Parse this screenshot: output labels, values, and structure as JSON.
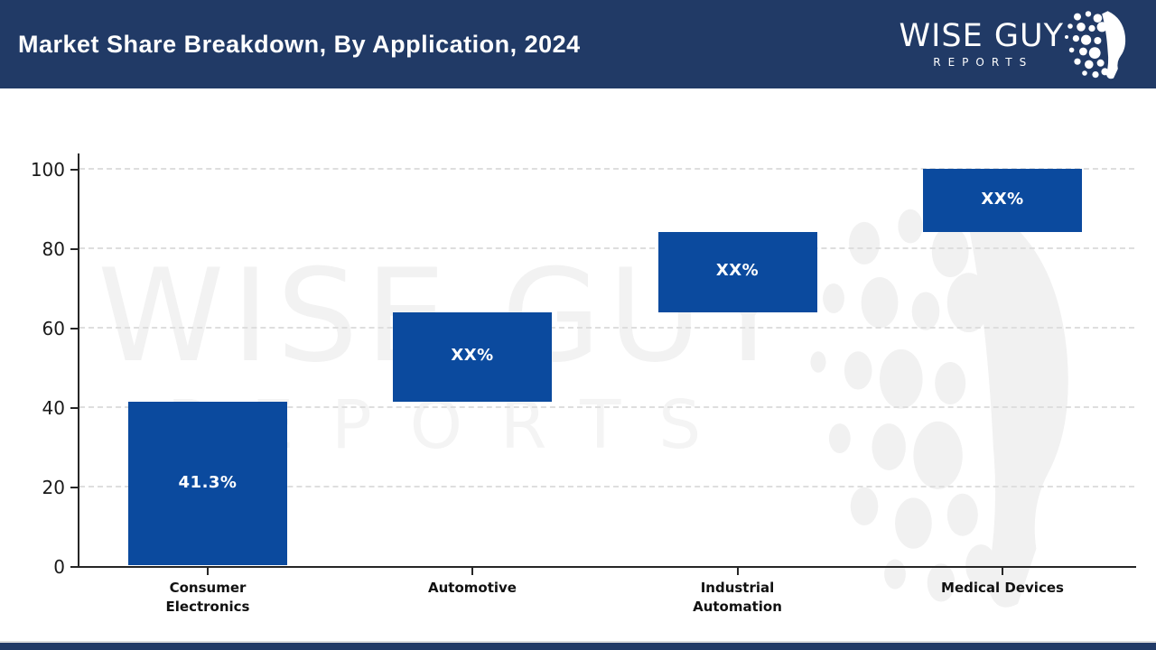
{
  "header": {
    "title": "Market Share Breakdown, By Application, 2024",
    "bg_color": "#213a66",
    "logo": {
      "line1": "WISE GUY",
      "line2": "REPORTS"
    }
  },
  "watermark": {
    "line1": "WISE GUY",
    "line2": "REPORTS"
  },
  "chart_data": {
    "type": "bar",
    "variant": "waterfall",
    "title": "Market Share Breakdown, By Application, 2024",
    "categories": [
      "Consumer Electronics",
      "Automotive",
      "Industrial Automation",
      "Medical Devices"
    ],
    "bars": [
      {
        "category": "Consumer Electronics",
        "category_lines": [
          "Consumer",
          "Electronics"
        ],
        "start": 0,
        "end": 41.3,
        "label": "41.3%"
      },
      {
        "category": "Automotive",
        "category_lines": [
          "Automotive"
        ],
        "start": 41.3,
        "end": 63.8,
        "label": "XX%"
      },
      {
        "category": "Industrial Automation",
        "category_lines": [
          "Industrial",
          "Automation"
        ],
        "start": 63.8,
        "end": 84,
        "label": "XX%"
      },
      {
        "category": "Medical Devices",
        "category_lines": [
          "Medical Devices"
        ],
        "start": 84,
        "end": 100,
        "label": "XX%"
      }
    ],
    "xlabel": "",
    "ylabel": "",
    "yticks": [
      0,
      20,
      40,
      60,
      80,
      100
    ],
    "ylim": [
      0,
      104
    ],
    "grid": true,
    "grid_style": "dashed",
    "legend": false,
    "bar_color": "#0b4a9e",
    "bar_label_color": "#ffffff",
    "axis_color": "#262626"
  }
}
